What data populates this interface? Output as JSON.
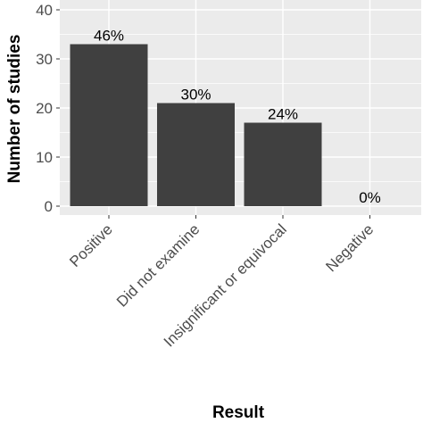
{
  "chart_data": {
    "type": "bar",
    "title": "",
    "xlabel": "Result",
    "ylabel": "Number of studies",
    "categories": [
      "Positive",
      "Did not examine",
      "Insignificant or equivocal",
      "Negative"
    ],
    "values": [
      33,
      21,
      17,
      0
    ],
    "data_labels": [
      "46%",
      "30%",
      "24%",
      "0%"
    ],
    "ylim": [
      0,
      40
    ],
    "yticks": [
      "0",
      "10",
      "20",
      "30",
      "40"
    ],
    "grid": true,
    "legend": "none"
  },
  "colors": {
    "panel_background": "#ebebeb",
    "gridline": "#ffffff",
    "bar_fill": "#404040",
    "tick_text": "#4d4d4d"
  }
}
